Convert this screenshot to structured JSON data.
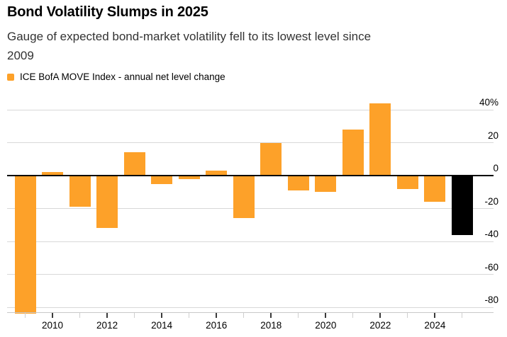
{
  "header": {
    "title": "Bond Volatility Slumps in 2025",
    "subtitle": "Gauge of expected bond-market volatility fell to its lowest level since\n2009"
  },
  "legend": {
    "label": "ICE BofA MOVE Index - annual net level change"
  },
  "colors": {
    "bar_default": "#FDA129",
    "bar_highlight": "#000000",
    "gridline": "#D8D8D8",
    "zero_line": "#000000",
    "axis_line": "#C9C9C9",
    "tick_major": "#3A3A3A",
    "tick_minor": "#CFCFCF"
  },
  "chart_data": {
    "type": "bar",
    "title": "Bond Volatility Slumps in 2025",
    "subtitle": "Gauge of expected bond-market volatility fell to its lowest level since 2009",
    "series": [
      {
        "name": "ICE BofA MOVE Index - annual net level change",
        "values": [
          -84,
          2,
          -19,
          -32,
          14,
          -5,
          -2,
          3,
          -26,
          20,
          -9,
          -10,
          28,
          44,
          -8,
          -16,
          -36
        ]
      }
    ],
    "categories": [
      2009,
      2010,
      2011,
      2012,
      2013,
      2014,
      2015,
      2016,
      2017,
      2018,
      2019,
      2020,
      2021,
      2022,
      2023,
      2024,
      2025
    ],
    "values": [
      -84,
      2,
      -19,
      -32,
      14,
      -5,
      -2,
      3,
      -26,
      20,
      -9,
      -10,
      28,
      44,
      -8,
      -16,
      -36
    ],
    "highlight_category": 2025,
    "unit": "%",
    "xlabel": "",
    "ylabel": "",
    "ylim": [
      -85,
      46
    ],
    "grid": true,
    "legend_position": "top-left",
    "y_ticks": [
      {
        "value": 40,
        "label": "40%"
      },
      {
        "value": 20,
        "label": "20"
      },
      {
        "value": 0,
        "label": "0"
      },
      {
        "value": -20,
        "label": "-20"
      },
      {
        "value": -40,
        "label": "-40"
      },
      {
        "value": -60,
        "label": "-60"
      },
      {
        "value": -80,
        "label": "-80"
      }
    ],
    "x_tick_labels": [
      {
        "year": 2010,
        "label": "2010"
      },
      {
        "year": 2012,
        "label": "2012"
      },
      {
        "year": 2014,
        "label": "2014"
      },
      {
        "year": 2016,
        "label": "2016"
      },
      {
        "year": 2018,
        "label": "2018"
      },
      {
        "year": 2020,
        "label": "2020"
      },
      {
        "year": 2022,
        "label": "2022"
      },
      {
        "year": 2024,
        "label": "2024"
      }
    ]
  }
}
